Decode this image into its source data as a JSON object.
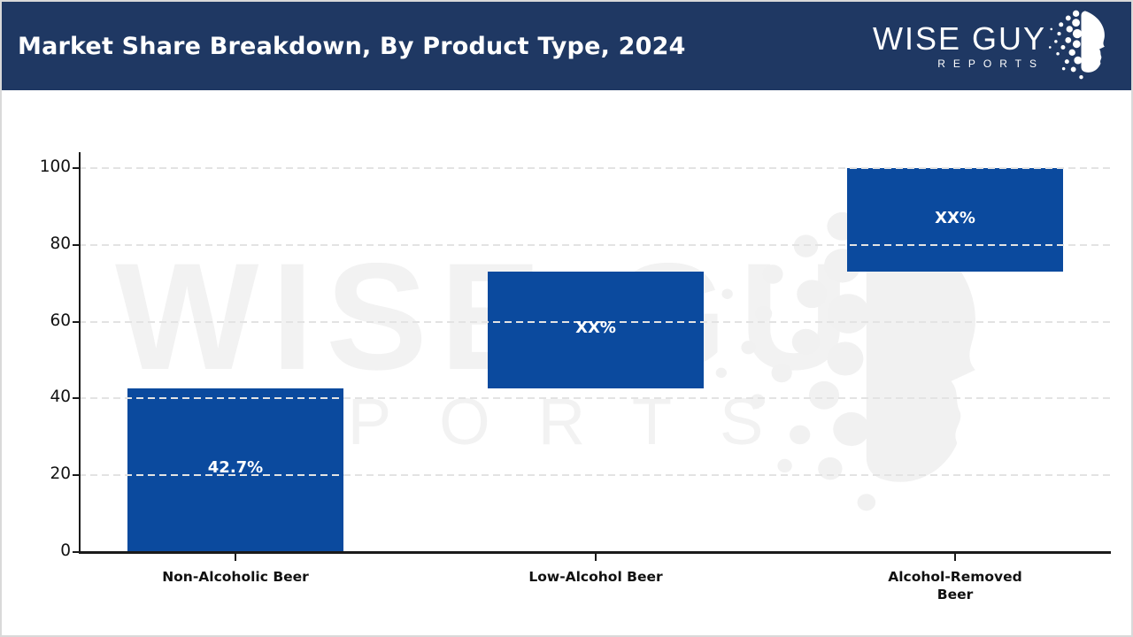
{
  "header": {
    "title": "Market Share Breakdown, By Product Type, 2024",
    "logo": {
      "line1": "WISE GUY",
      "line2": "REPORTS"
    }
  },
  "watermark": {
    "line1": "WISE GUY",
    "line2": "REPORTS"
  },
  "colors": {
    "header_bg": "#1f3863",
    "bar": "#0b4a9e",
    "bar_label": "#ffffff",
    "axis": "#1a1a1a",
    "grid": "#e3e3e3",
    "text": "#111111",
    "watermark": "#f1f1f1",
    "border": "#d9d9d9"
  },
  "chart_data": {
    "type": "bar",
    "subtype": "waterfall",
    "title": "Market Share Breakdown, By Product Type, 2024",
    "categories": [
      "Non-Alcoholic Beer",
      "Low-Alcohol Beer",
      "Alcohol-Removed\nBeer"
    ],
    "series": [
      {
        "name": "Market Share",
        "segments": [
          {
            "category": "Non-Alcoholic Beer",
            "start": 0,
            "end": 42.7,
            "label": "42.7%"
          },
          {
            "category": "Low-Alcohol Beer",
            "start": 42.7,
            "end": 73,
            "label": "XX%"
          },
          {
            "category": "Alcohol-Removed Beer",
            "start": 73,
            "end": 100,
            "label": "XX%"
          }
        ]
      }
    ],
    "xlabel": "",
    "ylabel": "",
    "ylim": [
      0,
      100
    ],
    "yticks": [
      0,
      20,
      40,
      60,
      80,
      100
    ],
    "grid": "horizontal-dashed",
    "legend": "none"
  }
}
